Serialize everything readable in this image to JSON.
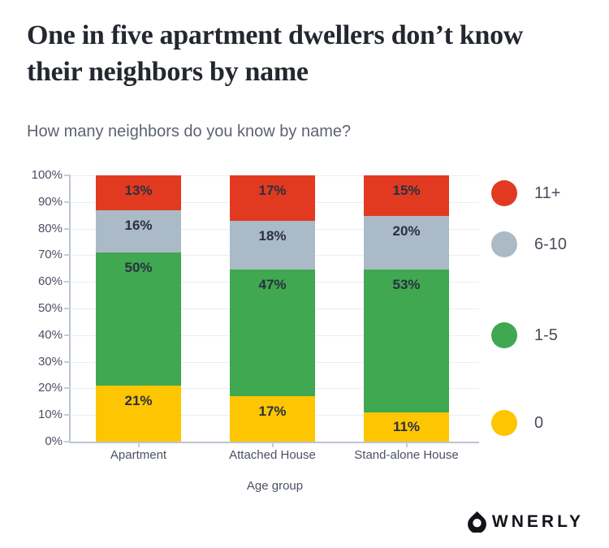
{
  "header": {
    "title_line1": "One in five apartment dwellers don’t know",
    "title_line2": "their neighbors by name",
    "subtitle": "How many neighbors do you know by name?"
  },
  "chart_data": {
    "type": "bar",
    "stacked": true,
    "normalized_to_100": true,
    "title": "One in five apartment dwellers don’t know their neighbors by name",
    "subtitle": "How many neighbors do you know by name?",
    "categories": [
      "Apartment",
      "Attached House",
      "Stand-alone House"
    ],
    "series": [
      {
        "name": "0",
        "color": "#fdc502",
        "values": [
          21,
          17,
          11
        ]
      },
      {
        "name": "1-5",
        "color": "#40a850",
        "values": [
          50,
          47,
          53
        ]
      },
      {
        "name": "6-10",
        "color": "#abbac7",
        "values": [
          16,
          18,
          20
        ]
      },
      {
        "name": "11+",
        "color": "#e23a20",
        "values": [
          13,
          17,
          15
        ]
      }
    ],
    "xlabel": "Age group",
    "ylabel": "",
    "ylim": [
      0,
      100
    ],
    "y_ticks": [
      "0%",
      "10%",
      "20%",
      "30%",
      "40%",
      "50%",
      "60%",
      "70%",
      "80%",
      "90%",
      "100%"
    ],
    "grid": true,
    "value_suffix": "%",
    "legend_position": "right",
    "legend_order": [
      "11+",
      "6-10",
      "1-5",
      "0"
    ]
  },
  "footer": {
    "brand": "OWNERLY",
    "wordmark_rest": "WNERLY"
  }
}
